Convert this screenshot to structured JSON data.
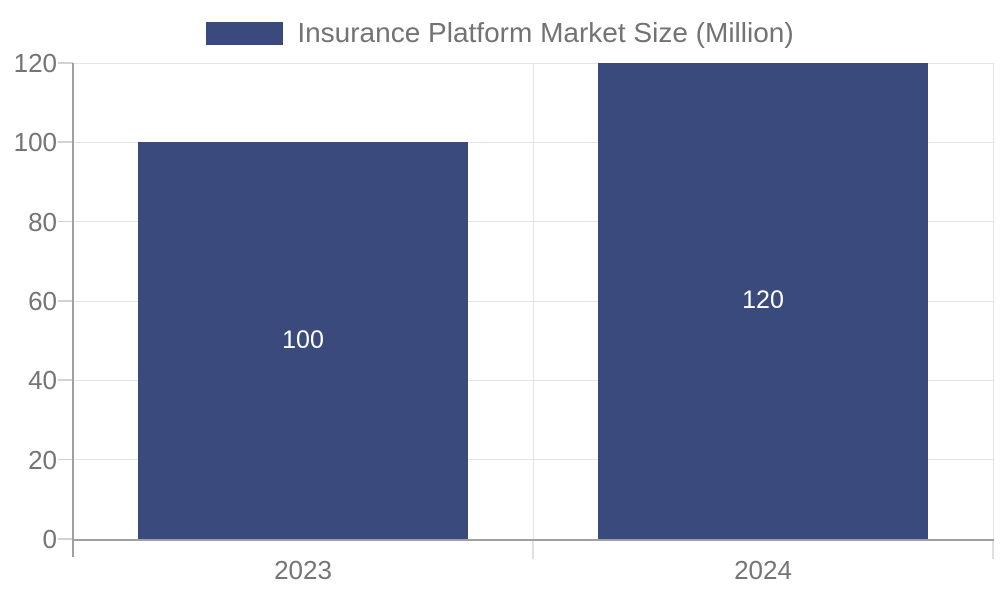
{
  "legend": {
    "label": "Insurance Platform Market Size (Million)"
  },
  "chart_data": {
    "type": "bar",
    "title": "Insurance Platform Market Size (Million)",
    "categories": [
      "2023",
      "2024"
    ],
    "series": [
      {
        "name": "Insurance Platform Market Size (Million)",
        "values": [
          100,
          120
        ]
      }
    ],
    "values": [
      100,
      120
    ],
    "value_labels": [
      "100",
      "120"
    ],
    "xlabel": "",
    "ylabel": "",
    "ylim": [
      0,
      120
    ],
    "yticks": [
      0,
      20,
      40,
      60,
      80,
      100,
      120
    ],
    "grid": true,
    "legend_position": "top-center"
  },
  "colors": {
    "bar": "#3a4a7d",
    "grid": "#e4e4e4",
    "axis": "#a0a0a0",
    "y_tick_mark": "#d2d2d2",
    "x_tick_mark": "#e0e0e0",
    "tick_label": "#757575",
    "legend_text": "#737373",
    "value_label": "#ffffff",
    "background": "#ffffff"
  }
}
